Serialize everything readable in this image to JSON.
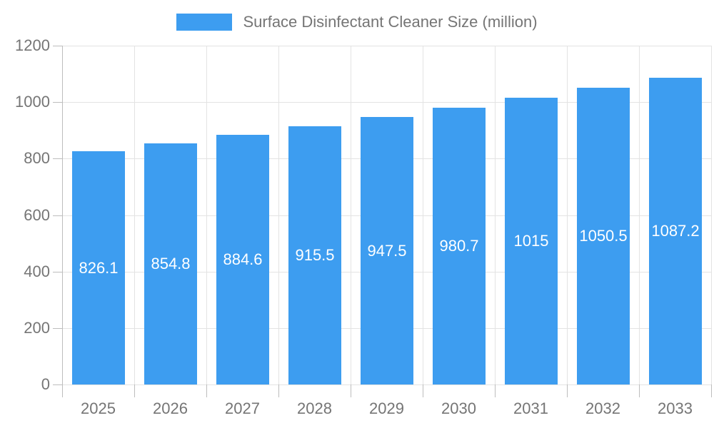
{
  "chart_data": {
    "type": "bar",
    "title": "Surface Disinfectant Cleaner Size (million)",
    "categories": [
      "2025",
      "2026",
      "2027",
      "2028",
      "2029",
      "2030",
      "2031",
      "2032",
      "2033"
    ],
    "values": [
      826.1,
      854.8,
      884.6,
      915.5,
      947.5,
      980.7,
      1015,
      1050.5,
      1087.2
    ],
    "value_labels": [
      "826.1",
      "854.8",
      "884.6",
      "915.5",
      "947.5",
      "980.7",
      "1015",
      "1050.5",
      "1087.2"
    ],
    "xlabel": "",
    "ylabel": "",
    "ylim": [
      0,
      1200
    ],
    "y_ticks": [
      0,
      200,
      400,
      600,
      800,
      1000,
      1200
    ],
    "grid": true,
    "legend_position": "top-center",
    "colors": {
      "bar": "#3D9DF0",
      "bar_label": "#FFFFFF",
      "axis_text": "#757575",
      "grid_line": "#E3E3E3",
      "axis_line": "#BDBDBD",
      "background": "#FFFFFF"
    }
  }
}
